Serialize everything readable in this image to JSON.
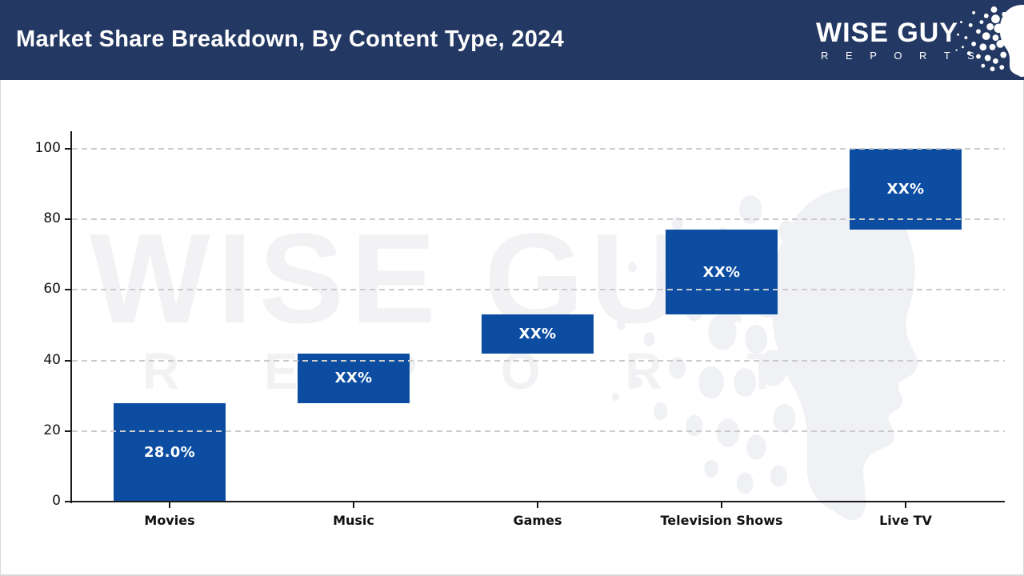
{
  "header": {
    "title": "Market Share Breakdown, By Content Type, 2024",
    "logo": {
      "line1": "WISE GUY",
      "line2": "R E P O R T S"
    }
  },
  "watermark": {
    "line1": "WISE GUY",
    "line2": "R E P O R T S"
  },
  "chart_data": {
    "type": "bar",
    "subtype": "waterfall",
    "title": "Market Share Breakdown, By Content Type, 2024",
    "categories": [
      "Movies",
      "Music",
      "Games",
      "Television Shows",
      "Live TV"
    ],
    "segments": [
      {
        "category": "Movies",
        "start": 0,
        "end": 28,
        "label": "28.0%"
      },
      {
        "category": "Music",
        "start": 28,
        "end": 42,
        "label": "XX%"
      },
      {
        "category": "Games",
        "start": 42,
        "end": 53,
        "label": "XX%"
      },
      {
        "category": "Television Shows",
        "start": 53,
        "end": 77,
        "label": "XX%"
      },
      {
        "category": "Live TV",
        "start": 77,
        "end": 100,
        "label": "XX%"
      }
    ],
    "xlabel": "",
    "ylabel": "",
    "yticks": [
      0,
      20,
      40,
      60,
      80,
      100
    ],
    "ylim": [
      0,
      105
    ],
    "grid": "horizontal-dashed",
    "legend": "none"
  },
  "colors": {
    "header_bg": "#233862",
    "bar": "#0c4da2",
    "bar_label": "#ffffff",
    "axis": "#1a1a1a",
    "grid": "#cccccc",
    "watermark": "#f0f1f4",
    "frame": "#d8d8d8"
  }
}
